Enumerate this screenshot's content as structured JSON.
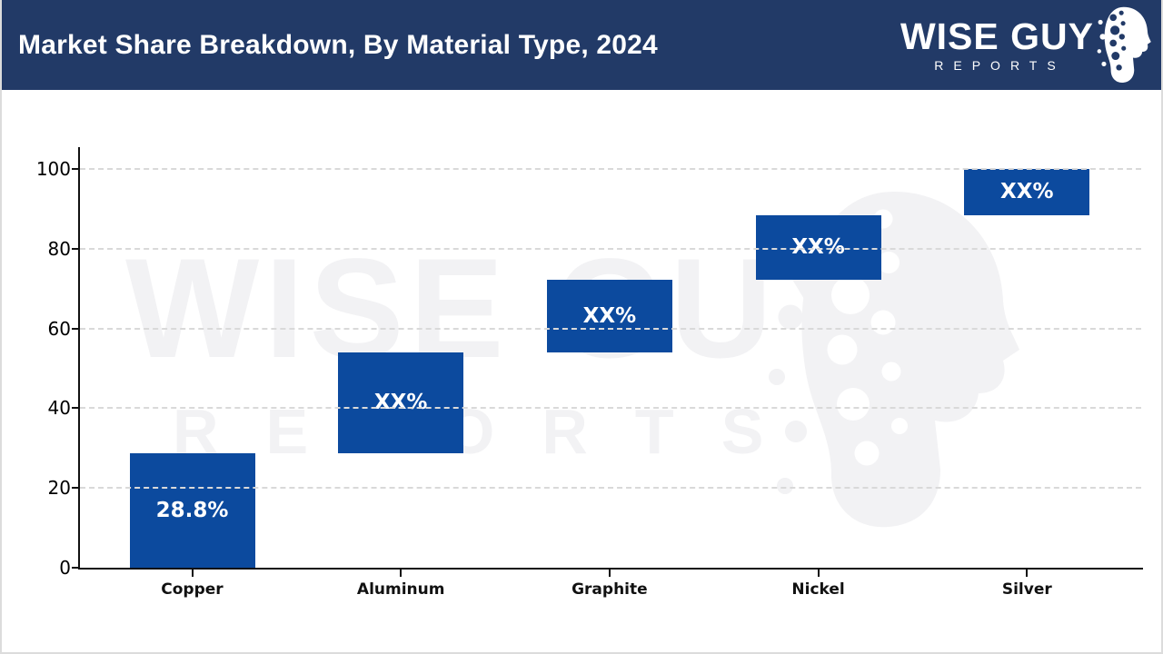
{
  "header": {
    "title": "Market Share Breakdown, By Material Type, 2024",
    "logo": {
      "line1": "WISE GUY",
      "line2": "REPORTS"
    }
  },
  "watermark": {
    "line1": "WISE GUY",
    "line2": "REPORTS"
  },
  "colors": {
    "header_bg": "#223a67",
    "bar": "#0c4a9e",
    "bar_label": "#ffffff",
    "grid": "#d9d9d9",
    "axis": "#111111",
    "watermark": "#f2f2f4"
  },
  "chart_data": {
    "type": "bar",
    "subtype": "waterfall",
    "title": "Market Share Breakdown, By Material Type, 2024",
    "categories": [
      "Copper",
      "Aluminum",
      "Graphite",
      "Nickel",
      "Silver"
    ],
    "segments": [
      {
        "category": "Copper",
        "start": 0,
        "end": 28.8,
        "label": "28.8%"
      },
      {
        "category": "Aluminum",
        "start": 28.8,
        "end": 54.0,
        "label": "XX%"
      },
      {
        "category": "Graphite",
        "start": 54.0,
        "end": 72.3,
        "label": "XX%"
      },
      {
        "category": "Nickel",
        "start": 72.3,
        "end": 88.4,
        "label": "XX%"
      },
      {
        "category": "Silver",
        "start": 88.4,
        "end": 100.0,
        "label": "XX%"
      }
    ],
    "xlabel": "",
    "ylabel": "",
    "yticks": [
      0,
      20,
      40,
      60,
      80,
      100
    ],
    "ylim": [
      0,
      105
    ],
    "grid": "horizontal-dashed",
    "legend": "none"
  }
}
